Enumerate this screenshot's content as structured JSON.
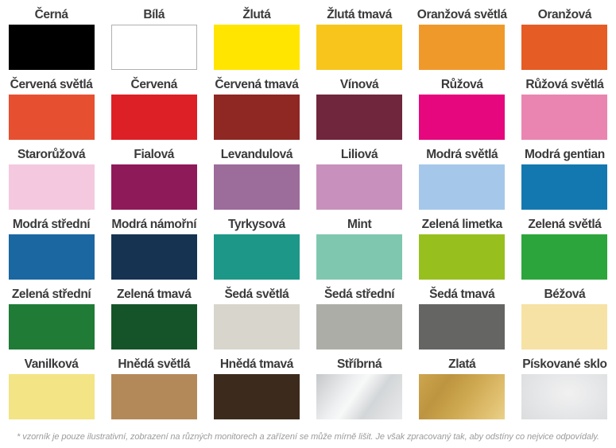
{
  "chart_data": {
    "type": "table",
    "title": "Vzorník barev (color swatch chart)",
    "grid": {
      "columns": 6,
      "rows": 6
    },
    "swatches": [
      {
        "label": "Černá",
        "color": "#000000"
      },
      {
        "label": "Bílá",
        "color": "#ffffff",
        "border": "#b0b0b0"
      },
      {
        "label": "Žlutá",
        "color": "#ffe500"
      },
      {
        "label": "Žlutá tmavá",
        "color": "#f8c51d"
      },
      {
        "label": "Oranžová světlá",
        "color": "#f0992b"
      },
      {
        "label": "Oranžová",
        "color": "#e55c24"
      },
      {
        "label": "Červená světlá",
        "color": "#e65031"
      },
      {
        "label": "Červená",
        "color": "#dd2025"
      },
      {
        "label": "Červená tmavá",
        "color": "#8f2723"
      },
      {
        "label": "Vínová",
        "color": "#70263c"
      },
      {
        "label": "Růžová",
        "color": "#e6077e"
      },
      {
        "label": "Růžová světlá",
        "color": "#e985b0"
      },
      {
        "label": "Starorůžová",
        "color": "#f4c9e0"
      },
      {
        "label": "Fialová",
        "color": "#8f1a59"
      },
      {
        "label": "Levandulová",
        "color": "#9c6c9a"
      },
      {
        "label": "Liliová",
        "color": "#c890bc"
      },
      {
        "label": "Modrá světlá",
        "color": "#a5c8ea"
      },
      {
        "label": "Modrá gentian",
        "color": "#1478b0"
      },
      {
        "label": "Modrá střední",
        "color": "#1b67a2"
      },
      {
        "label": "Modrá námořní",
        "color": "#163351"
      },
      {
        "label": "Tyrkysová",
        "color": "#1d9787"
      },
      {
        "label": "Mint",
        "color": "#80c7b0"
      },
      {
        "label": "Zelená limetka",
        "color": "#97c01f"
      },
      {
        "label": "Zelená světlá",
        "color": "#2ca63c"
      },
      {
        "label": "Zelená střední",
        "color": "#1f7b36"
      },
      {
        "label": "Zelená tmavá",
        "color": "#155429"
      },
      {
        "label": "Šedá světlá",
        "color": "#d7d5cc"
      },
      {
        "label": "Šedá střední",
        "color": "#adada8"
      },
      {
        "label": "Šedá tmavá",
        "color": "#656564"
      },
      {
        "label": "Béžová",
        "color": "#f6e2a4"
      },
      {
        "label": "Vanilková",
        "color": "#f3e486"
      },
      {
        "label": "Hnědá světlá",
        "color": "#b48959"
      },
      {
        "label": "Hnědá tmavá",
        "color": "#3c2b1c"
      },
      {
        "label": "Stříbrná",
        "gradient": "linear-gradient(125deg, #c5c8ca 0%, #eff0f1 35%, #f7f8f8 45%, #d3d6d8 65%, #e9eaeb 100%)"
      },
      {
        "label": "Zlatá",
        "gradient": "linear-gradient(125deg, #cda64f 0%, #bd943f 28%, #cfa952 55%, #e2c374 85%, #e9d08a 100%)"
      },
      {
        "label": "Pískované sklo",
        "gradient": "radial-gradient(ellipse 90% 120% at 55% 42%, #f1f1f2 0%, #e3e4e5 50%, #d4d6d7 100%)"
      }
    ]
  },
  "footnote": "* vzorník je pouze ilustrativní, zobrazení na různých monitorech a zařízení se může mírně lišit. Je však zpracovaný tak, aby odstíny co nejvice odpovídaly."
}
